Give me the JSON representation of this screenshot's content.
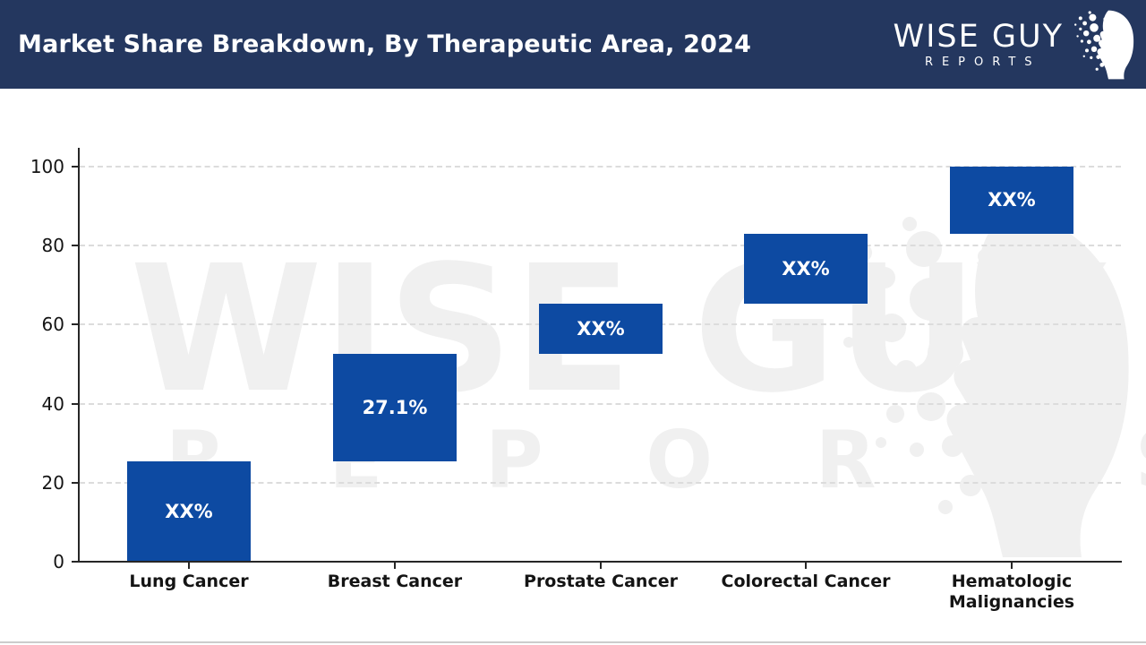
{
  "header": {
    "title": "Market Share Breakdown, By Therapeutic Area, 2024",
    "logo": {
      "line1": "WISE GUY",
      "line2": "REPORTS"
    },
    "bg_color": "#24375F"
  },
  "watermark": {
    "line1": "WISE GUY",
    "line2": "R E P O R T S"
  },
  "chart_data": {
    "type": "bar",
    "subtype": "waterfall",
    "title": "Market Share Breakdown, By Therapeutic Area, 2024",
    "categories": [
      "Lung Cancer",
      "Breast Cancer",
      "Prostate Cancer",
      "Colorectal Cancer",
      "Hematologic Malignancies"
    ],
    "segments": [
      {
        "category": "Lung Cancer",
        "start": 0,
        "end": 25.4,
        "label": "XX%"
      },
      {
        "category": "Breast Cancer",
        "start": 25.4,
        "end": 52.5,
        "label": "27.1%"
      },
      {
        "category": "Prostate Cancer",
        "start": 52.5,
        "end": 65.2,
        "label": "XX%"
      },
      {
        "category": "Colorectal Cancer",
        "start": 65.2,
        "end": 83.0,
        "label": "XX%"
      },
      {
        "category": "Hematologic Malignancies",
        "start": 83.0,
        "end": 100.0,
        "label": "XX%"
      }
    ],
    "yticks": [
      0,
      20,
      40,
      60,
      80,
      100
    ],
    "ylim": [
      0,
      105
    ],
    "xlabel": "",
    "ylabel": "",
    "bar_color": "#0D4AA2",
    "bar_label_color": "#ffffff",
    "grid": "horizontal-dashed",
    "legend": "none"
  }
}
